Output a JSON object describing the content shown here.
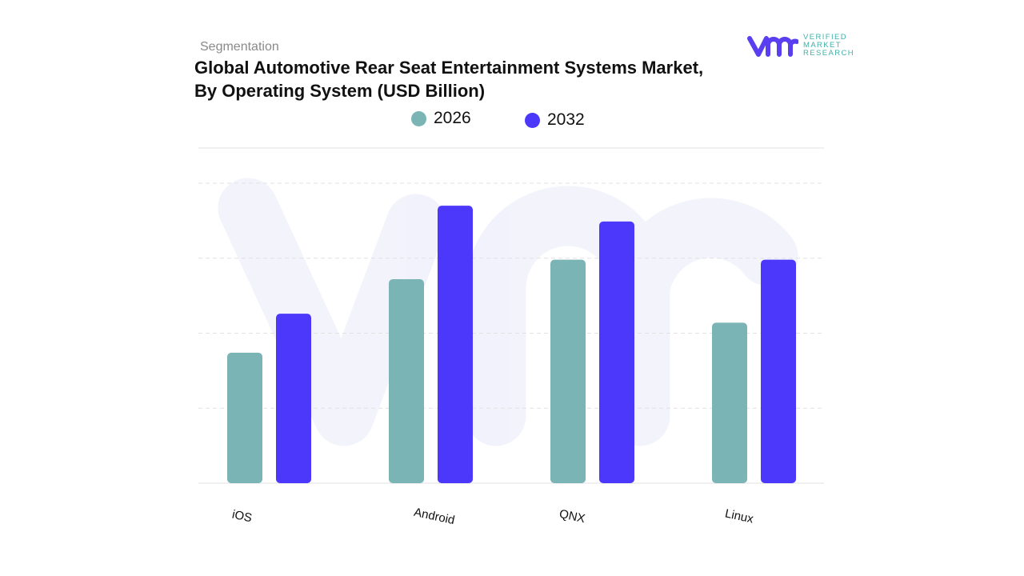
{
  "header": {
    "segment_label": "Segmentation",
    "title": "Global Automotive Rear Seat Entertainment Systems Market, By Operating System (USD Billion)"
  },
  "logo": {
    "text_lines": [
      "VERIFIED",
      "MARKET",
      "RESEARCH"
    ],
    "mark": "vmr"
  },
  "colors": {
    "series_2026": "#7ab4b5",
    "series_2032": "#4b38fb",
    "logo_mark": "#5a3ff0",
    "logo_text": "#3fb0a8"
  },
  "chart_data": {
    "type": "bar",
    "title": "Global Automotive Rear Seat Entertainment Systems Market, By Operating System (USD Billion)",
    "categories": [
      "iOS",
      "Android",
      "QNX",
      "Linux"
    ],
    "series": [
      {
        "name": "2026",
        "values": [
          1.74,
          2.72,
          2.98,
          2.14
        ]
      },
      {
        "name": "2032",
        "values": [
          2.26,
          3.7,
          3.49,
          2.98
        ]
      }
    ],
    "xlabel": "",
    "ylabel": "",
    "ylim": [
      0,
      4.47
    ],
    "y_ticks_shown": false,
    "grid": true,
    "legend_position": "top"
  }
}
